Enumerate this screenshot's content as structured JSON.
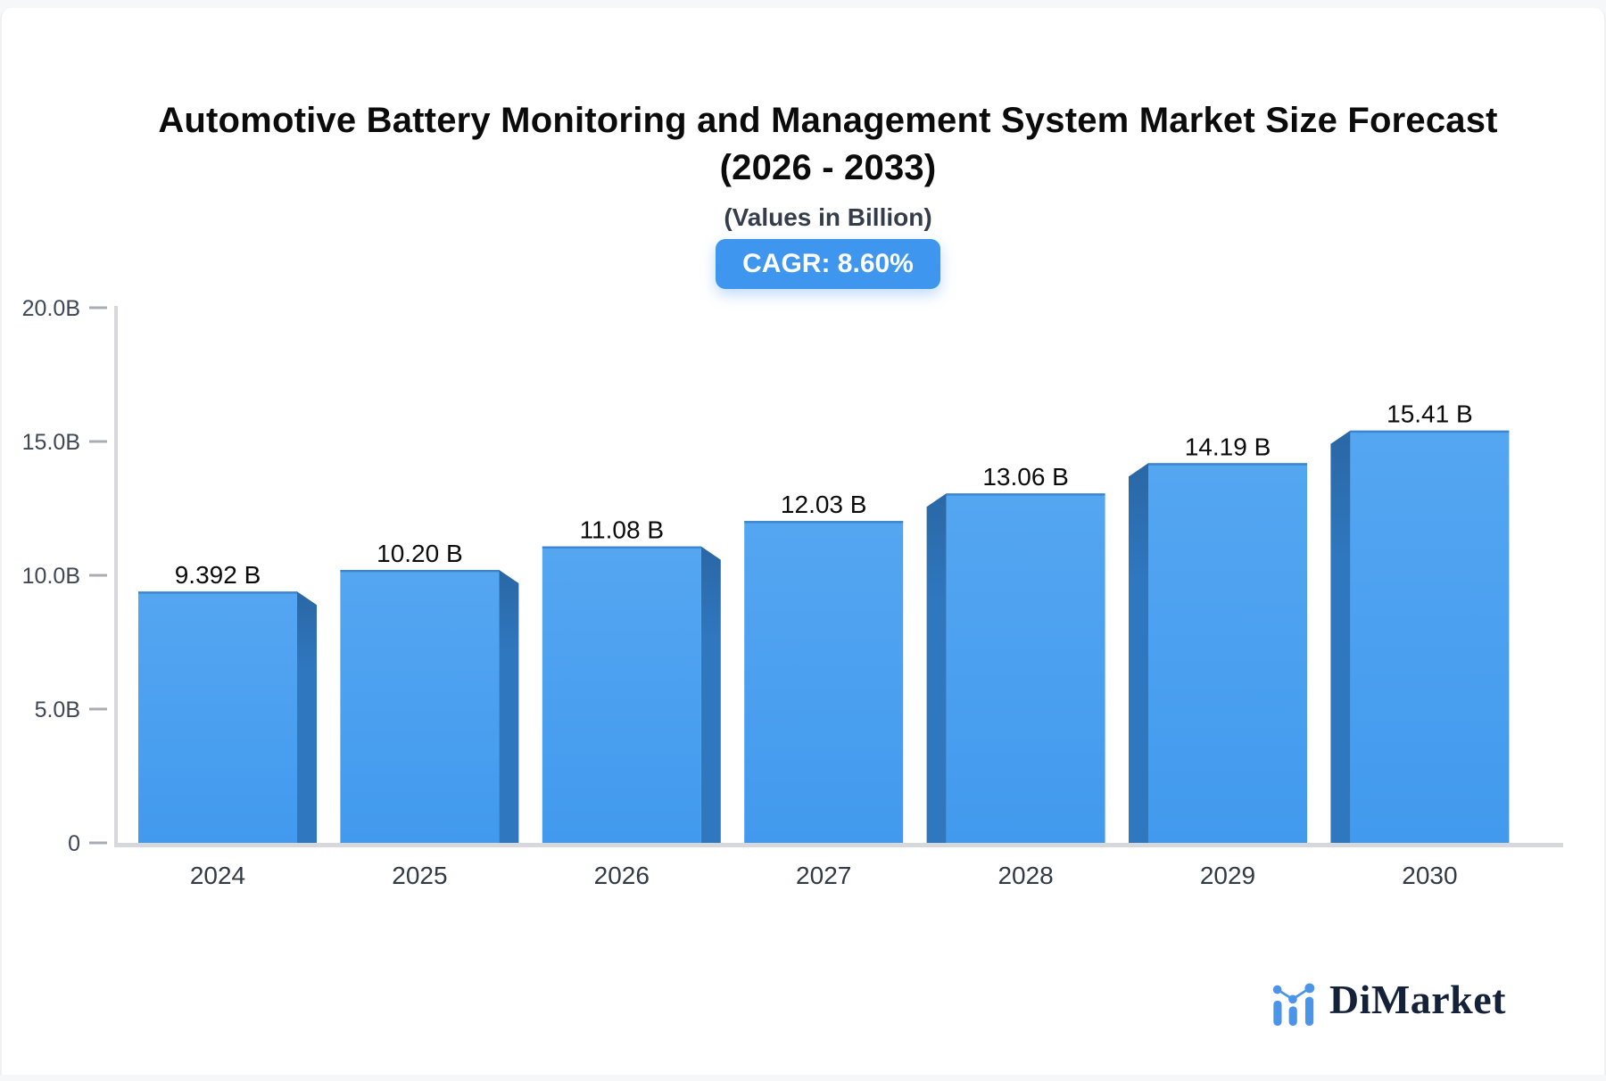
{
  "header": {
    "title_line1": "Automotive Battery Monitoring and Management System Market Size Forecast",
    "title_line2": "(2026 - 2033)",
    "subtitle": "(Values in Billion)",
    "cagr_badge": "CAGR: 8.60%"
  },
  "chart_data": {
    "type": "bar",
    "title": "Automotive Battery Monitoring and Management System Market Size Forecast (2026 - 2033)",
    "subtitle": "(Values in Billion)",
    "annotation": "CAGR: 8.60%",
    "categories": [
      "2024",
      "2025",
      "2026",
      "2027",
      "2028",
      "2029",
      "2030"
    ],
    "values": [
      9.392,
      10.2,
      11.08,
      12.03,
      13.06,
      14.19,
      15.41
    ],
    "value_labels": [
      "9.392 B",
      "10.20 B",
      "11.08 B",
      "12.03 B",
      "13.06 B",
      "14.19 B",
      "15.41 B"
    ],
    "ytick_values": [
      0,
      5,
      10,
      15,
      20
    ],
    "ylabel_ticks": [
      "0",
      "5.0B",
      "10.0B",
      "15.0B",
      "20.0B"
    ],
    "ylim": [
      0,
      20
    ],
    "unit": "Billion USD",
    "grid": false,
    "legend": false,
    "style": "3d-perspective-bars",
    "colors": {
      "face_top": "#54a6f1",
      "face_bottom": "#429aee",
      "face_edge": "#3b86cf",
      "side_dark": "#2a67a5",
      "side_light": "#2f77be",
      "axis": "#d7d8db",
      "tick": "#a8adb5",
      "tick_label": "#3f4754",
      "category_label": "#323a46",
      "value_label": "#0c0c0c",
      "badge_bg": "#3f96ee",
      "badge_text": "#ffffff"
    }
  },
  "logo": {
    "text": "DiMarket",
    "icon": "bar-chart-logo-icon",
    "text_color": "#142138",
    "accent_color": "#4a94ea"
  }
}
